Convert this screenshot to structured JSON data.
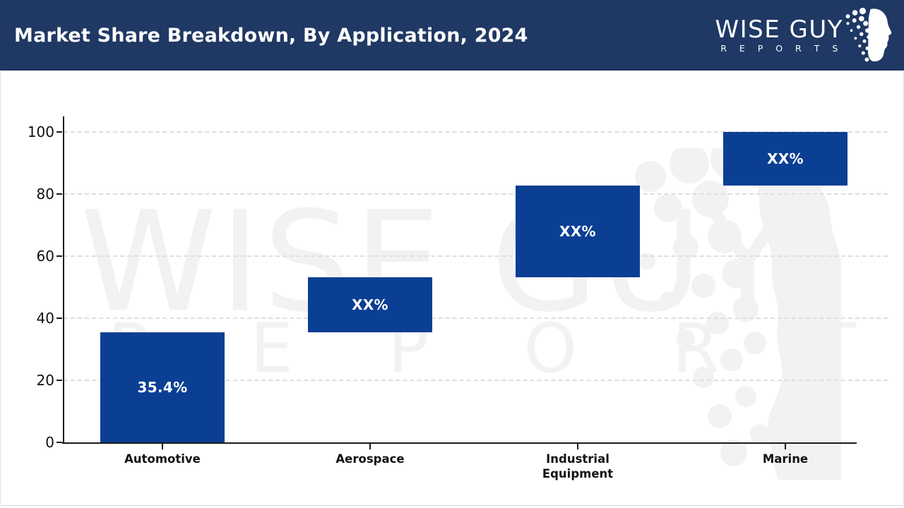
{
  "header": {
    "title": "Market Share Breakdown, By Application, 2024",
    "brand": {
      "line1": "WISE GUY",
      "line2": "R E P O R T S"
    },
    "background_color": "#1f3864"
  },
  "watermark": {
    "line1": "WISE GUY",
    "line2": "R E P O R T S"
  },
  "chart_data": {
    "type": "bar",
    "subtype": "waterfall",
    "title": "Market Share Breakdown, By Application, 2024",
    "categories": [
      "Automotive",
      "Aerospace",
      "Industrial Equipment",
      "Marine"
    ],
    "segments": [
      {
        "category": "Automotive",
        "start": 0,
        "end": 35.4,
        "label": "35.4%"
      },
      {
        "category": "Aerospace",
        "start": 35.4,
        "end": 53.1,
        "label": "XX%"
      },
      {
        "category": "Industrial Equipment",
        "start": 53.1,
        "end": 82.7,
        "label": "XX%"
      },
      {
        "category": "Marine",
        "start": 82.7,
        "end": 100,
        "label": "XX%"
      }
    ],
    "ylim": [
      0,
      100
    ],
    "yticks": [
      0,
      20,
      40,
      60,
      80,
      100
    ],
    "grid": "horizontal-dashed",
    "legend": "none",
    "bar_color": "#0a3f94",
    "bar_label_color": "#ffffff",
    "axis_color": "#1a1a1a"
  }
}
